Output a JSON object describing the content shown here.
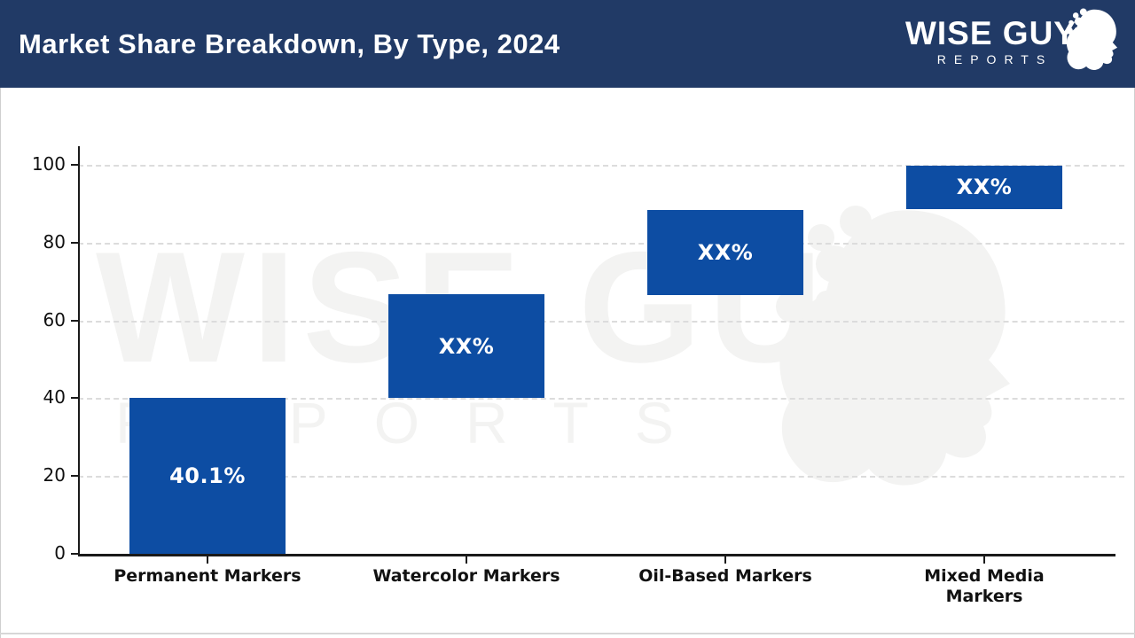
{
  "header": {
    "title": "Market Share Breakdown, By Type, 2024",
    "logo": {
      "line1": "WISE GUY",
      "line2": "REPORTS"
    }
  },
  "watermark": {
    "line1": "WISE GUY",
    "line2": "REPORTS"
  },
  "colors": {
    "header_bg": "#213a66",
    "bar": "#0d4da3",
    "bar_label_text": "#ffffff",
    "grid": "#dcdcdc",
    "axis": "#1a1a1a",
    "watermark": "#f3f3f2",
    "background": "#ffffff"
  },
  "chart_data": {
    "type": "bar",
    "subtype": "floating-waterfall",
    "title": "Market Share Breakdown, By Type, 2024",
    "categories": [
      "Permanent Markers",
      "Watercolor Markers",
      "Oil-Based Markers",
      "Mixed Media Markers"
    ],
    "tick_labels_wrapped": [
      "Permanent Markers",
      "Watercolor Markers",
      "Oil-Based Markers",
      "Mixed Media\nMarkers"
    ],
    "series": [
      {
        "name": "Market share (%)",
        "segments": [
          {
            "category": "Permanent Markers",
            "start": 0,
            "end": 40.1,
            "label": "40.1%"
          },
          {
            "category": "Watercolor Markers",
            "start": 40.0,
            "end": 66.7,
            "label": "XX%"
          },
          {
            "category": "Oil-Based Markers",
            "start": 66.5,
            "end": 88.4,
            "label": "XX%"
          },
          {
            "category": "Mixed Media Markers",
            "start": 88.6,
            "end": 99.8,
            "label": "XX%"
          }
        ]
      }
    ],
    "xlabel": "",
    "ylabel": "",
    "yticks": [
      0,
      20,
      40,
      60,
      80,
      100
    ],
    "ylim": [
      0,
      105
    ],
    "grid": {
      "horizontal": true,
      "style": "dashed"
    },
    "legend": "none"
  }
}
